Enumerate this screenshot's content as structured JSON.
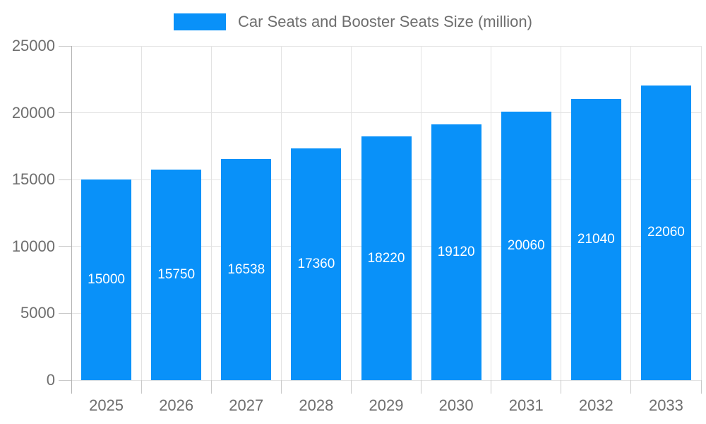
{
  "chart_data": {
    "type": "bar",
    "title": "Car Seats and Booster Seats Size (million)",
    "categories": [
      "2025",
      "2026",
      "2027",
      "2028",
      "2029",
      "2030",
      "2031",
      "2032",
      "2033"
    ],
    "series": [
      {
        "name": "Car Seats and Booster Seats Size (million)",
        "values": [
          15000,
          15750,
          16538,
          17360,
          18220,
          19120,
          20060,
          21040,
          22060
        ]
      }
    ],
    "value_labels": [
      "15000",
      "15750",
      "16538",
      "17360",
      "18220",
      "19120",
      "20060",
      "21040",
      "22060"
    ],
    "xlabel": "",
    "ylabel": "",
    "ylim": [
      0,
      25000
    ],
    "yticks": [
      0,
      5000,
      10000,
      15000,
      20000,
      25000
    ],
    "ytick_labels": [
      "0",
      "5000",
      "10000",
      "15000",
      "20000",
      "25000"
    ],
    "grid": true,
    "legend_position": "top",
    "colors": {
      "bar": "#0991f9",
      "value_label": "#ffffff",
      "axis_text": "#6e6e6e",
      "gridline": "#e3e3e3",
      "tick": "#c9c9c9",
      "axis_line": "#b3b3b3",
      "background": "#ffffff"
    }
  }
}
